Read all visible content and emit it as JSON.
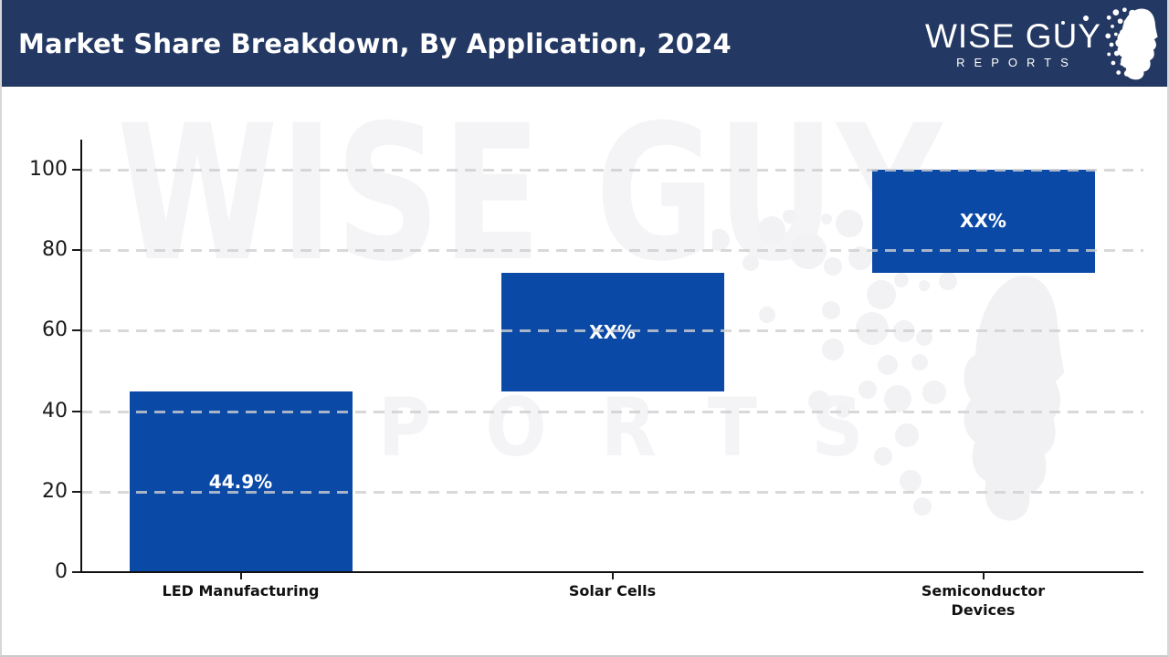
{
  "header": {
    "title": "Market Share Breakdown, By Application, 2024",
    "logo": {
      "line1": "WISE GUY",
      "line2": "REPORTS"
    }
  },
  "watermark": {
    "text_big": "WISE GUY",
    "text_small": "REPORTS"
  },
  "chart_data": {
    "type": "waterfall",
    "title": "Market Share Breakdown, By Application, 2024",
    "categories": [
      "LED Manufacturing",
      "Solar Cells",
      "Semiconductor Devices"
    ],
    "segments": [
      {
        "category": "LED Manufacturing",
        "start": 0,
        "end": 44.9,
        "label": "44.9%"
      },
      {
        "category": "Solar Cells",
        "start": 44.9,
        "end": 74.4,
        "label": "XX%"
      },
      {
        "category": "Semiconductor Devices",
        "start": 74.4,
        "end": 100,
        "label": "XX%"
      }
    ],
    "yticks": [
      0,
      20,
      40,
      60,
      80,
      100
    ],
    "ylim": [
      0,
      107
    ],
    "xlabel": "",
    "ylabel": "",
    "grid": "horizontal-dashed",
    "legend": "none",
    "bar_color": "#0a49a6",
    "bar_label_color": "#ffffff",
    "axis_color": "#111111",
    "grid_color": "#cfcfcf",
    "header_bg_color": "#233862",
    "watermark_color": "#f4f4f6"
  }
}
